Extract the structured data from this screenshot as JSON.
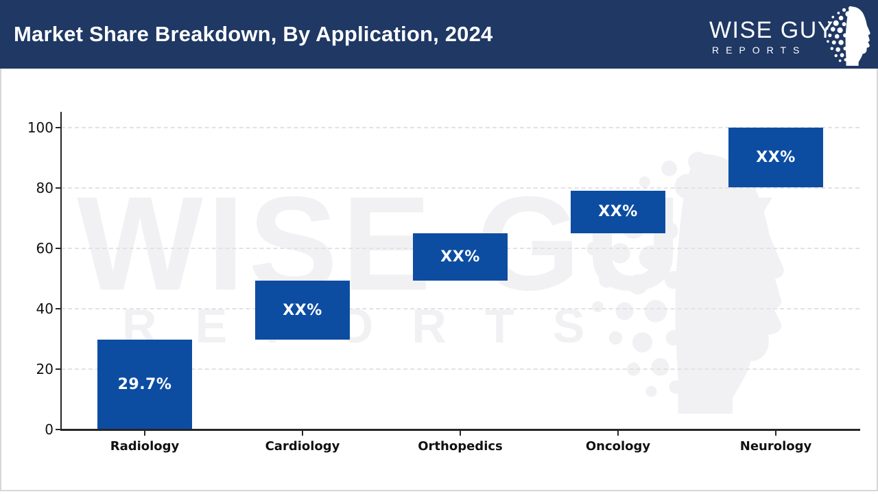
{
  "header": {
    "title": "Market Share Breakdown, By Application, 2024",
    "logo": {
      "primary": "WISE GUY",
      "secondary": "REPORTS"
    }
  },
  "watermark": {
    "line1": "WISE GUY",
    "line2": "REPORTS"
  },
  "chart_data": {
    "type": "bar",
    "subtype": "waterfall",
    "title": "Market Share Breakdown, By Application, 2024",
    "categories": [
      "Radiology",
      "Cardiology",
      "Orthopedics",
      "Oncology",
      "Neurology"
    ],
    "segments": [
      {
        "category": "Radiology",
        "start": 0,
        "end": 29.7,
        "label": "29.7%"
      },
      {
        "category": "Cardiology",
        "start": 29.7,
        "end": 49.3,
        "label": "XX%"
      },
      {
        "category": "Orthopedics",
        "start": 49.4,
        "end": 65.0,
        "label": "XX%"
      },
      {
        "category": "Oncology",
        "start": 65.0,
        "end": 79.1,
        "label": "XX%"
      },
      {
        "category": "Neurology",
        "start": 80.2,
        "end": 100.0,
        "label": "XX%"
      }
    ],
    "xlabel": "",
    "ylabel": "",
    "ylim": [
      0,
      105
    ],
    "yticks": [
      0,
      20,
      40,
      60,
      80,
      100
    ],
    "grid": "horizontal-dashed",
    "legend": null,
    "bar_color": "#0C4DA2",
    "bar_label_color": "#ffffff"
  },
  "colors": {
    "header_bg": "#1F3864",
    "bar": "#0C4DA2",
    "gridline": "#E2E2E4",
    "axis": "#262626",
    "watermark": "#F1F1F4"
  }
}
